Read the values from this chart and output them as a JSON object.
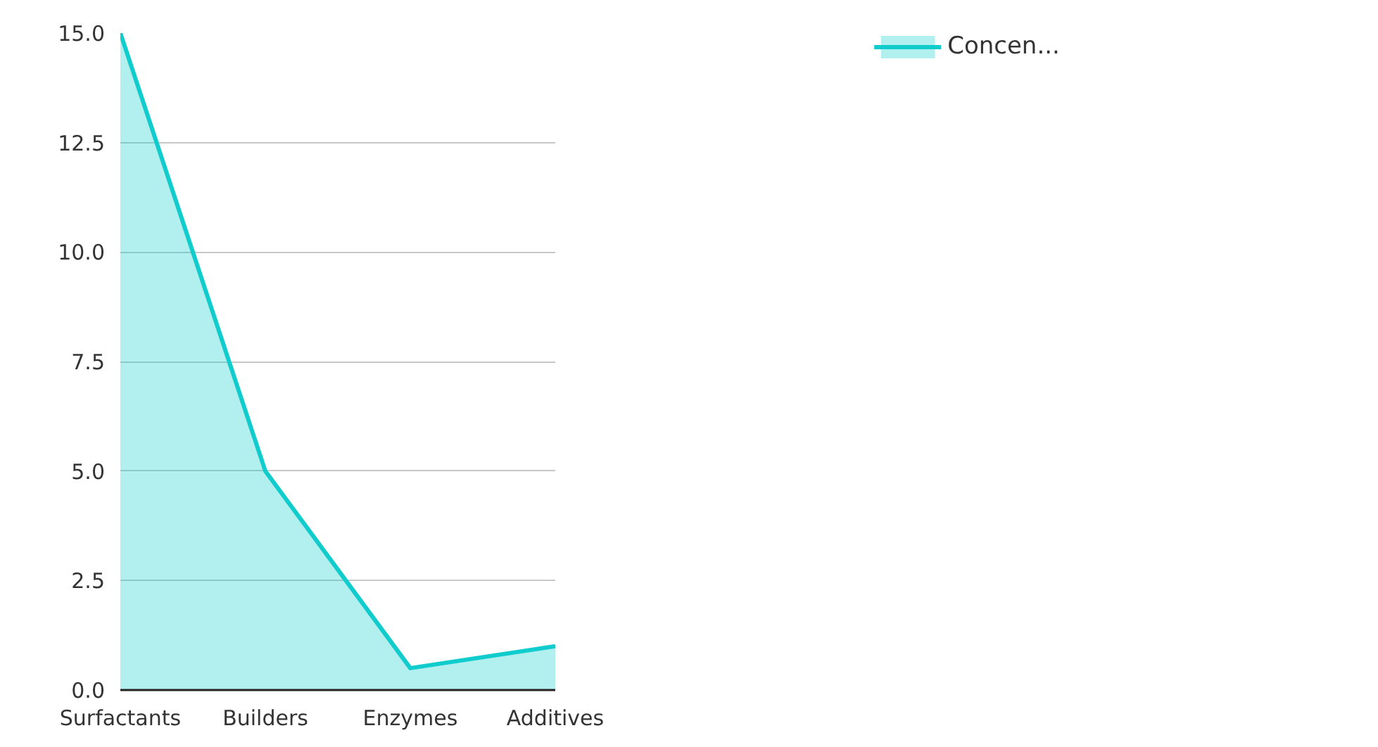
{
  "chart_data": {
    "type": "area",
    "categories": [
      "Surfactants",
      "Builders",
      "Enzymes",
      "Additives"
    ],
    "series": [
      {
        "name": "Concen...",
        "color": "#11cccc",
        "values": [
          15,
          5,
          0.5,
          1.0
        ]
      }
    ],
    "ylim": [
      0,
      15
    ],
    "yticks": [
      {
        "value": 0,
        "label": "0.0"
      },
      {
        "value": 2.5,
        "label": "2.5"
      },
      {
        "value": 5,
        "label": "5.0"
      },
      {
        "value": 7.5,
        "label": "7.5"
      },
      {
        "value": 10,
        "label": "10.0"
      },
      {
        "value": 12.5,
        "label": "12.5"
      },
      {
        "value": 15,
        "label": "15.0"
      }
    ],
    "grid": "y",
    "legend": "top right"
  }
}
